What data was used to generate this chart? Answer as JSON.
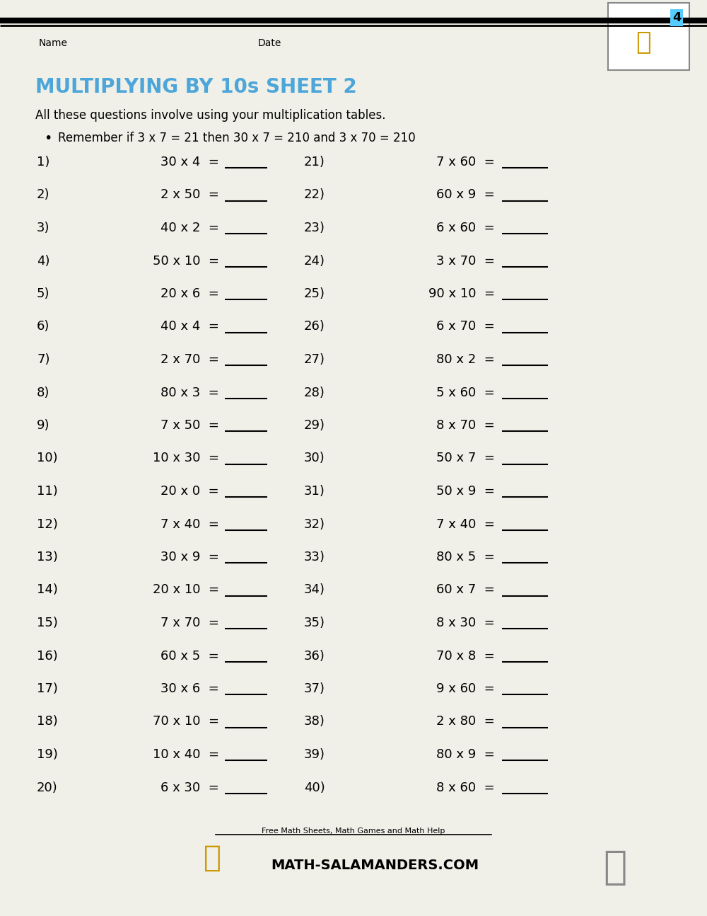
{
  "title": "MULTIPLYING BY 10s SHEET 2",
  "title_color": "#4da6d9",
  "subtitle": "All these questions involve using your multiplication tables.",
  "bullet": "Remember if 3 x 7 = 21 then 30 x 7 = 210 and 3 x 70 = 210",
  "name_label": "Name",
  "date_label": "Date",
  "background_color": "#f0f0e8",
  "problems_left": [
    "30 x 4  =",
    "2 x 50  =",
    "40 x 2  =",
    "50 x 10  =",
    "20 x 6  =",
    "40 x 4  =",
    "2 x 70  =",
    "80 x 3  =",
    "7 x 50  =",
    "10 x 30  =",
    "20 x 0  =",
    "7 x 40  =",
    "30 x 9  =",
    "20 x 10  =",
    "7 x 70  =",
    "60 x 5  =",
    "30 x 6  =",
    "70 x 10  =",
    "10 x 40  =",
    "6 x 30  ="
  ],
  "numbers_left": [
    "1)",
    "2)",
    "3)",
    "4)",
    "5)",
    "6)",
    "7)",
    "8)",
    "9)",
    "10)",
    "11)",
    "12)",
    "13)",
    "14)",
    "15)",
    "16)",
    "17)",
    "18)",
    "19)",
    "20)"
  ],
  "problems_right": [
    "7 x 60  =",
    "60 x 9  =",
    "6 x 60  =",
    "3 x 70  =",
    "90 x 10  =",
    "6 x 70  =",
    "80 x 2  =",
    "5 x 60  =",
    "8 x 70  =",
    "50 x 7  =",
    "50 x 9  =",
    "7 x 40  =",
    "80 x 5  =",
    "60 x 7  =",
    "8 x 30  =",
    "70 x 8  =",
    "9 x 60  =",
    "2 x 80  =",
    "80 x 9  =",
    "8 x 60  ="
  ],
  "numbers_right": [
    "21)",
    "22)",
    "23)",
    "24)",
    "25)",
    "26)",
    "27)",
    "28)",
    "29)",
    "30)",
    "31)",
    "32)",
    "33)",
    "34)",
    "35)",
    "36)",
    "37)",
    "38)",
    "39)",
    "40)"
  ],
  "font_size_title": 20,
  "font_size_body": 12,
  "font_size_problems": 13,
  "font_size_name_date": 10,
  "footer_small": "Free Math Sheets, Math Games and Math Help",
  "footer_big": "ATH-SALAMANDERS.COM"
}
